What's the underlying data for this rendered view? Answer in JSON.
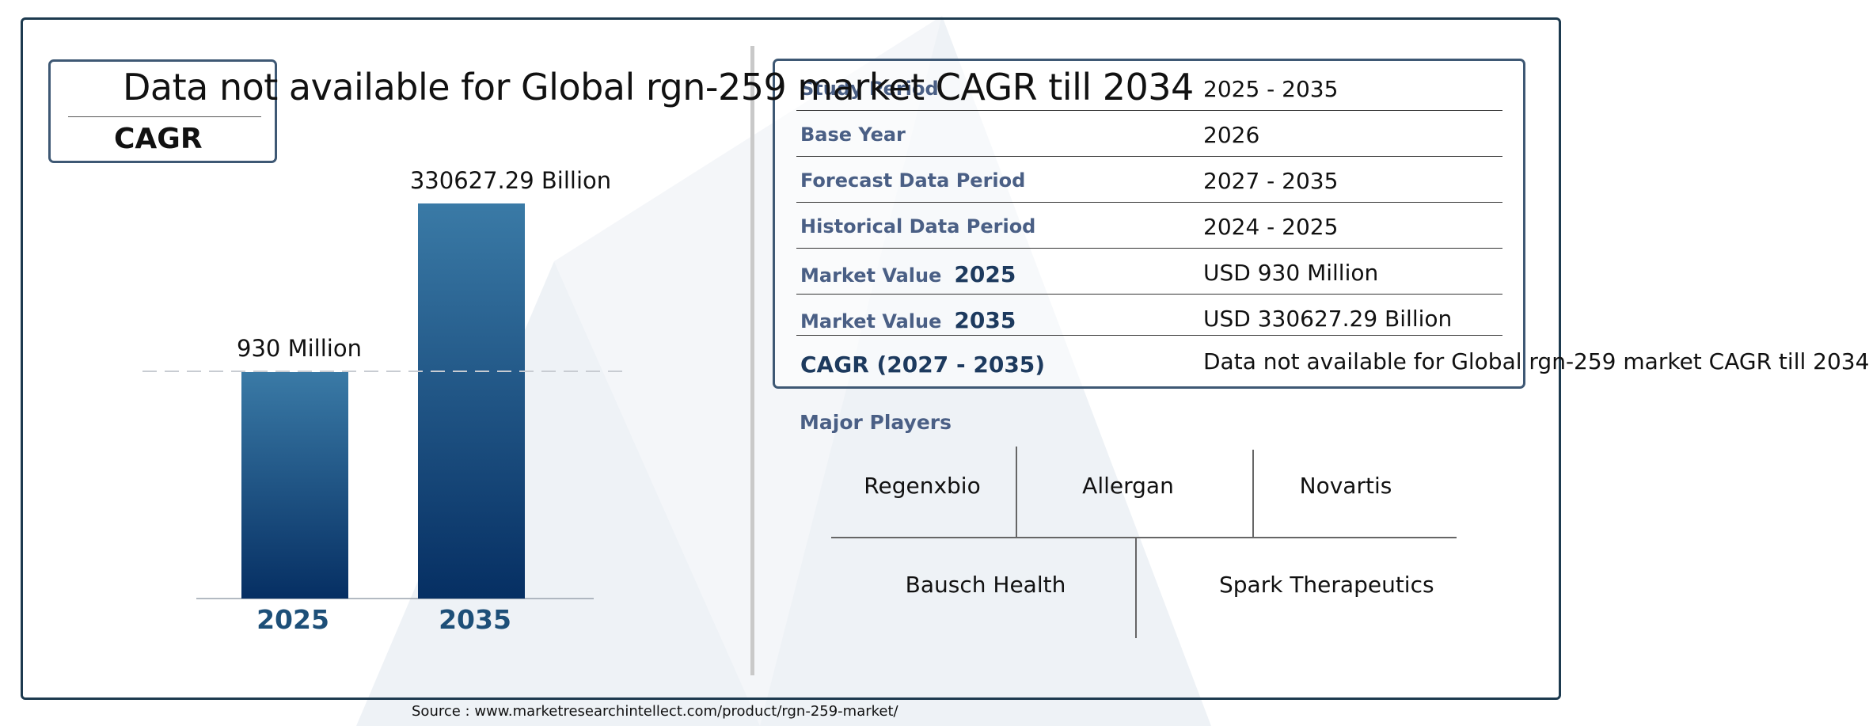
{
  "headline": "Data not available for Global rgn-259 market CAGR till 2034",
  "cagr_badge": "CAGR",
  "chart_data": {
    "type": "bar",
    "categories": [
      "2025",
      "2035"
    ],
    "values": [
      930,
      330627.29
    ],
    "value_labels": [
      "930 Million",
      "330627.29 Billion"
    ],
    "title": "",
    "xlabel": "",
    "ylabel": "",
    "grid": false,
    "reference_line": "dashed line at the 2025 bar level",
    "colors": {
      "bar_top": "#3a7aa6",
      "bar_bottom": "#062f63",
      "category_text": "#1d4f78"
    }
  },
  "info_table": [
    {
      "key": "Study Period",
      "year": "",
      "value": "2025 - 2035"
    },
    {
      "key": "Base Year",
      "year": "",
      "value": "2026"
    },
    {
      "key": "Forecast Data Period",
      "year": "",
      "value": "2027 - 2035"
    },
    {
      "key": "Historical Data Period",
      "year": "",
      "value": "2024 - 2025"
    },
    {
      "key": "Market Value",
      "year": "2025",
      "value": "USD 930 Million"
    },
    {
      "key": "Market Value",
      "year": "2035",
      "value": "USD 330627.29 Billion"
    },
    {
      "key": "CAGR (2027 - 2035)",
      "year": "",
      "value": "Data not available for Global rgn-259 market CAGR till 2034"
    }
  ],
  "players": {
    "title": "Major Players",
    "row1": [
      "Regenxbio",
      "Allergan",
      "Novartis"
    ],
    "row2": [
      "Bausch Health",
      "Spark Therapeutics"
    ]
  },
  "source": "Source : www.marketresearchintellect.com/product/rgn-259-market/",
  "colors": {
    "frame": "#1d3a4f",
    "key_text": "#4a5f85",
    "watermark": "#dfe6ee"
  }
}
